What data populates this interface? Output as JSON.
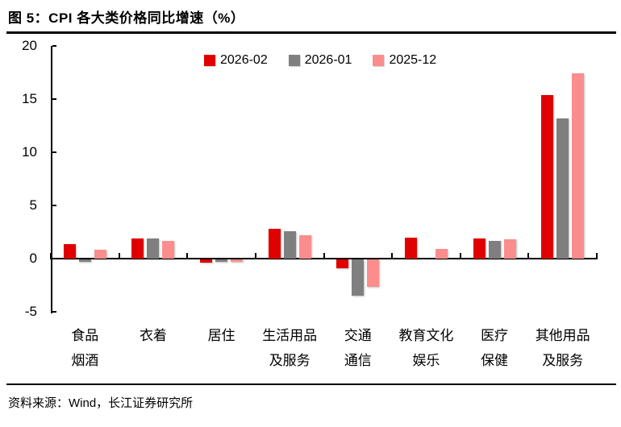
{
  "page": {
    "title": "图 5：CPI 各大类价格同比增速（%）",
    "source": "资料来源：Wind，长江证券研究所"
  },
  "chart_data": {
    "type": "bar",
    "title": "CPI 各大类价格同比增速（%）",
    "categories": [
      "食品烟酒",
      "衣着",
      "居住",
      "生活用品及服务",
      "交通通信",
      "教育文化娱乐",
      "医疗保健",
      "其他用品及服务"
    ],
    "category_label_lines": [
      [
        "食品",
        "烟酒"
      ],
      [
        "衣着"
      ],
      [
        "居住"
      ],
      [
        "生活用品",
        "及服务"
      ],
      [
        "交通",
        "通信"
      ],
      [
        "教育文化",
        "娱乐"
      ],
      [
        "医疗",
        "保健"
      ],
      [
        "其他用品",
        "及服务"
      ]
    ],
    "series": [
      {
        "name": "2026-02",
        "color": "#e00000",
        "values": [
          1.4,
          1.9,
          -0.3,
          2.8,
          -0.8,
          2.0,
          1.9,
          15.4
        ]
      },
      {
        "name": "2026-01",
        "color": "#7f7f7f",
        "values": [
          -0.2,
          1.9,
          -0.2,
          2.6,
          -3.4,
          0.0,
          1.7,
          13.2
        ]
      },
      {
        "name": "2025-12",
        "color": "#fc8d8d",
        "values": [
          0.8,
          1.7,
          -0.2,
          2.2,
          -2.6,
          0.9,
          1.8,
          17.4
        ]
      }
    ],
    "ylim": [
      -5,
      20
    ],
    "yticks": [
      20,
      15,
      10,
      5,
      0,
      -5
    ],
    "legend_position": "top",
    "grid": false
  }
}
